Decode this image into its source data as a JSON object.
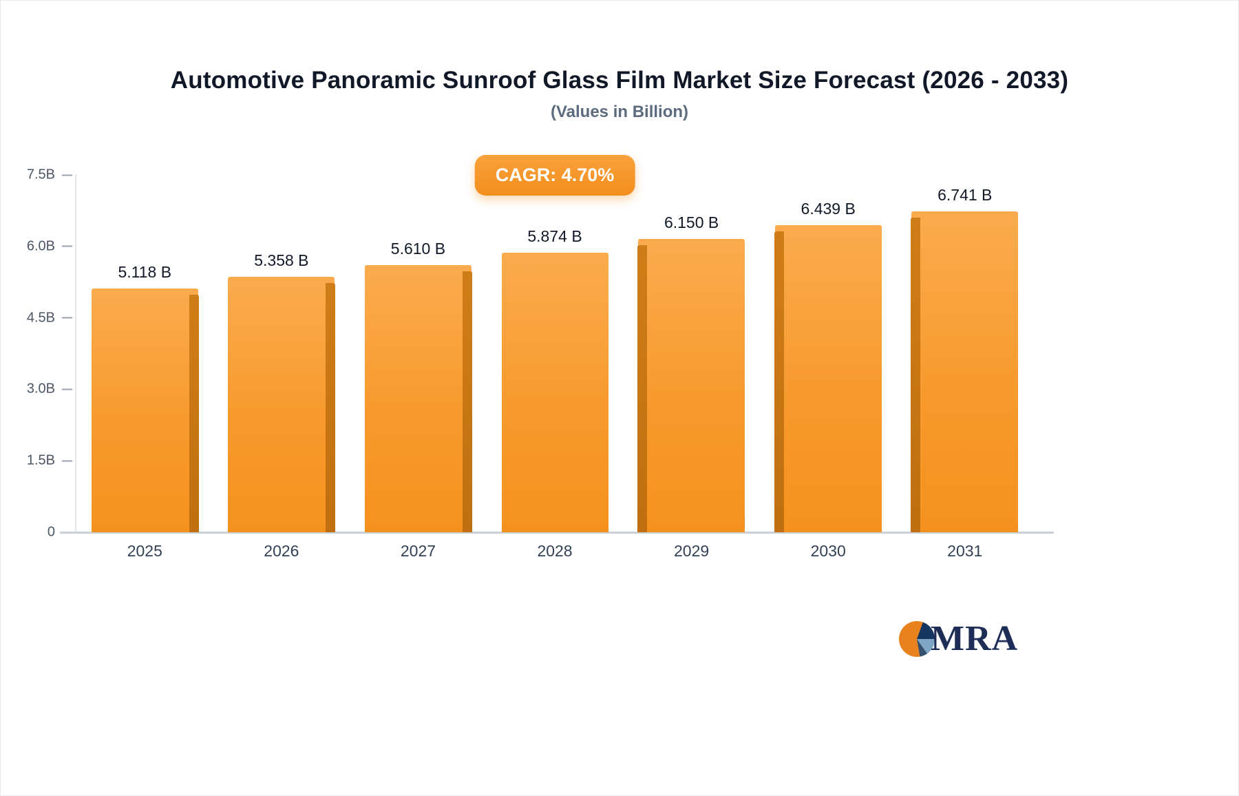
{
  "header": {
    "title": "Automotive Panoramic Sunroof Glass Film Market Size Forecast (2026 - 2033)",
    "subtitle": "(Values in Billion)"
  },
  "badge": {
    "label": "CAGR: 4.70%"
  },
  "chart_data": {
    "type": "bar",
    "title": "Automotive Panoramic Sunroof Glass Film Market Size Forecast (2026 - 2033)",
    "subtitle": "(Values in Billion)",
    "categories": [
      "2025",
      "2026",
      "2027",
      "2028",
      "2029",
      "2030",
      "2031"
    ],
    "values": [
      5.118,
      5.358,
      5.61,
      5.874,
      6.15,
      6.439,
      6.741
    ],
    "value_labels": [
      "5.118 B",
      "5.358 B",
      "5.610 B",
      "5.874 B",
      "6.150 B",
      "6.439 B",
      "6.741 B"
    ],
    "xlabel": "",
    "ylabel": "",
    "ylim": [
      0,
      7.5
    ],
    "yticks": [
      "7.5B",
      "6.0B",
      "4.5B",
      "3.0B",
      "1.5B",
      "0"
    ],
    "ytick_values": [
      7.5,
      6.0,
      4.5,
      3.0,
      1.5,
      0
    ],
    "grid": false,
    "legend": false,
    "bar_color_top": "#fbab4e",
    "bar_color_bottom": "#f5921e",
    "bar_side_color": "#c06f10",
    "cagr": "CAGR: 4.70%"
  },
  "logo": {
    "text": "MRA"
  }
}
